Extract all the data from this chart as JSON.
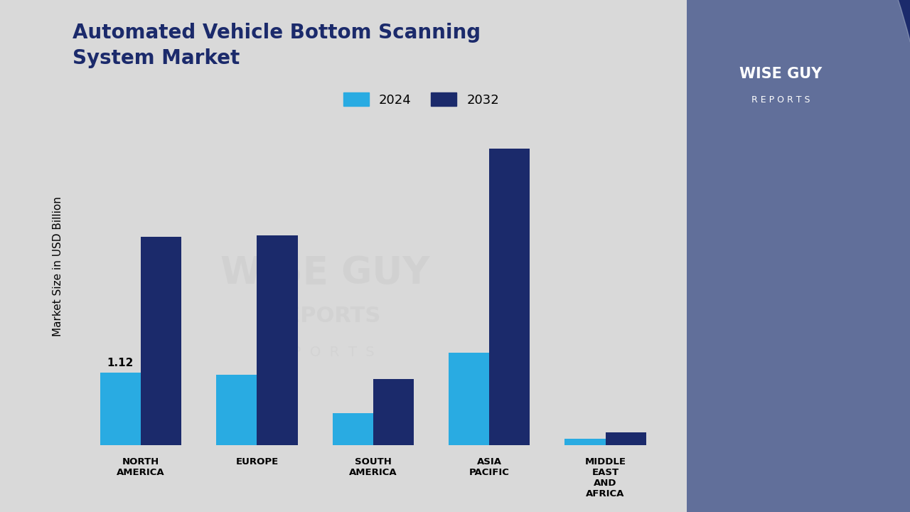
{
  "title": "Automated Vehicle Bottom Scanning\nSystem Market",
  "ylabel": "Market Size in USD Billion",
  "categories": [
    "NORTH\nAMERICA",
    "EUROPE",
    "SOUTH\nAMERICA",
    "ASIA\nPACIFIC",
    "MIDDLE\nEAST\nAND\nAFRICA"
  ],
  "values_2024": [
    1.12,
    1.08,
    0.5,
    1.42,
    0.1
  ],
  "values_2032": [
    3.2,
    3.22,
    1.02,
    4.55,
    0.2
  ],
  "color_2024": "#29ABE2",
  "color_2032": "#1B2A6B",
  "annotation_value": "1.12",
  "annotation_index": 0,
  "background_color": "#D9D9D9",
  "title_color": "#1B2A6B",
  "ylabel_color": "#000000",
  "bar_width": 0.35,
  "legend_labels": [
    "2024",
    "2032"
  ],
  "right_panel_color": "#1B2A6B",
  "wiseguy_watermark": "WISE GUY\nREPORTS"
}
